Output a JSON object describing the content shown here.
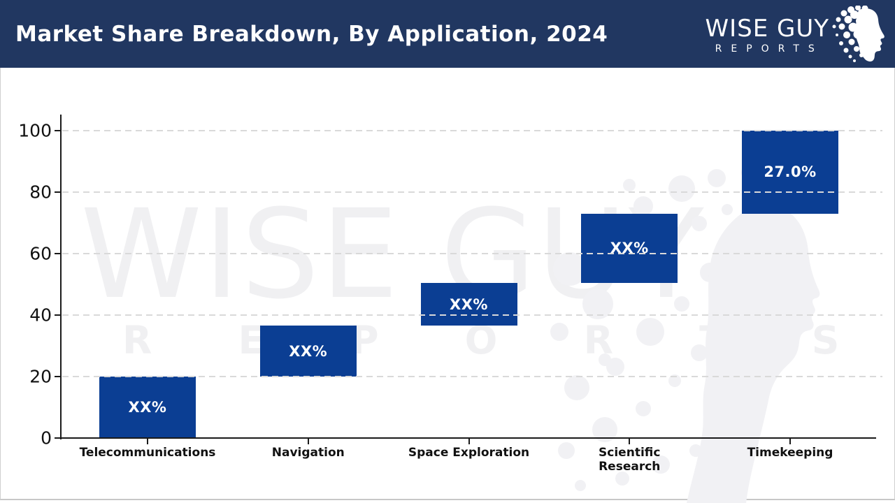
{
  "header": {
    "title": "Market Share Breakdown, By Application, 2024",
    "bg_color": "#213761",
    "logo": {
      "wordmark": "WISE GUY",
      "subtext": "REPORTS"
    }
  },
  "watermark": {
    "wordmark": "WISE GUY",
    "subtext": "R E P O R T S"
  },
  "chart_data": {
    "type": "bar",
    "subtype": "waterfall",
    "title": "Market Share Breakdown, By Application, 2024",
    "categories": [
      "Telecommunications",
      "Navigation",
      "Space Exploration",
      "Scientific Research",
      "Timekeeping"
    ],
    "x_tick_labels": [
      "Telecommunications",
      "Navigation",
      "Space Exploration",
      "Scientific\nResearch",
      "Timekeeping"
    ],
    "segments": [
      {
        "category": "Telecommunications",
        "start": 0,
        "end": 20,
        "label": "XX%"
      },
      {
        "category": "Navigation",
        "start": 20,
        "end": 36.5,
        "label": "XX%"
      },
      {
        "category": "Space Exploration",
        "start": 36.5,
        "end": 50.5,
        "label": "XX%"
      },
      {
        "category": "Scientific Research",
        "start": 50.5,
        "end": 73,
        "label": "XX%"
      },
      {
        "category": "Timekeeping",
        "start": 73,
        "end": 100,
        "label": "27.0%"
      }
    ],
    "ylim": [
      0,
      100
    ],
    "yticks": [
      0,
      20,
      40,
      60,
      80,
      100
    ],
    "grid": "horizontal-dashed",
    "legend": "none",
    "bar_color": "#0B3E93",
    "bar_label_color": "#FFFFFF"
  }
}
